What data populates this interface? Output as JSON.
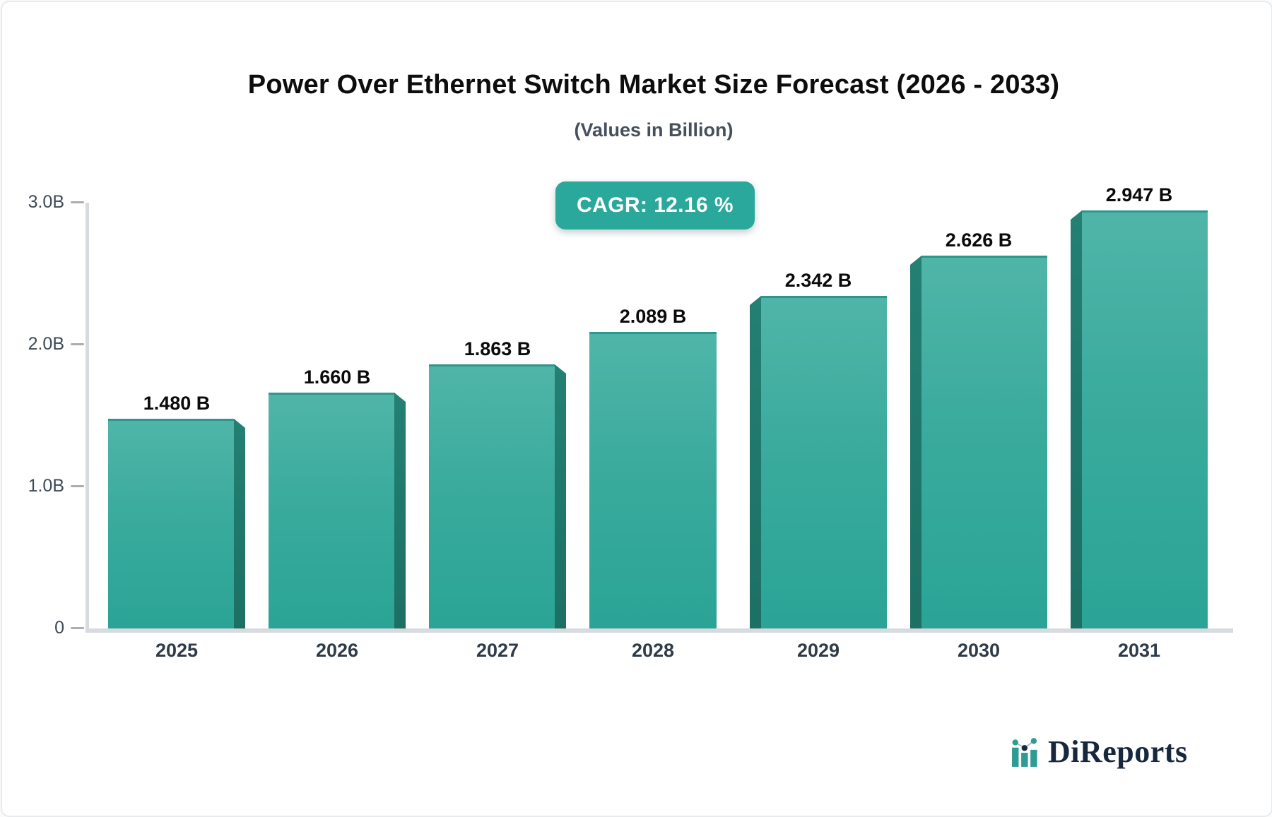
{
  "header": {
    "title": "Power Over Ethernet Switch Market Size Forecast (2026 - 2033)",
    "subtitle": "(Values in Billion)",
    "cagr_label": "CAGR: 12.16 %"
  },
  "branding": {
    "name": "DiReports",
    "icon": "mini-bar-chart-icon"
  },
  "colors": {
    "bar_face_top": "#50b5a9",
    "bar_face_bottom": "#2aa496",
    "bar_top_edge": "#2e968a",
    "bar_side": "#1f7468",
    "badge_background": "#2aa89b",
    "badge_text": "#ffffff",
    "axis": "#d7dade",
    "logo_navy": "#16273e",
    "logo_teal": "#2d9c92"
  },
  "chart_data": {
    "type": "bar",
    "categories": [
      "2025",
      "2026",
      "2027",
      "2028",
      "2029",
      "2030",
      "2031"
    ],
    "values": [
      1.48,
      1.66,
      1.863,
      2.089,
      2.342,
      2.626,
      2.947
    ],
    "bar_labels": [
      "1.480 B",
      "1.660 B",
      "1.863 B",
      "2.089 B",
      "2.342 B",
      "2.626 B",
      "2.947 B"
    ],
    "title": "Power Over Ethernet Switch Market Size Forecast (2026 - 2033)",
    "subtitle": "(Values in Billion)",
    "cagr": "12.16 %",
    "xlabel": "",
    "ylabel": "",
    "ylim": [
      0,
      3
    ],
    "yticks": [
      {
        "value": 3,
        "label": "3.0B"
      },
      {
        "value": 2,
        "label": "2.0B"
      },
      {
        "value": 1,
        "label": "1.0B"
      },
      {
        "value": 0,
        "label": "0"
      }
    ],
    "grid": false,
    "legend": false,
    "style": "3d-bars",
    "unit": "Billion"
  }
}
